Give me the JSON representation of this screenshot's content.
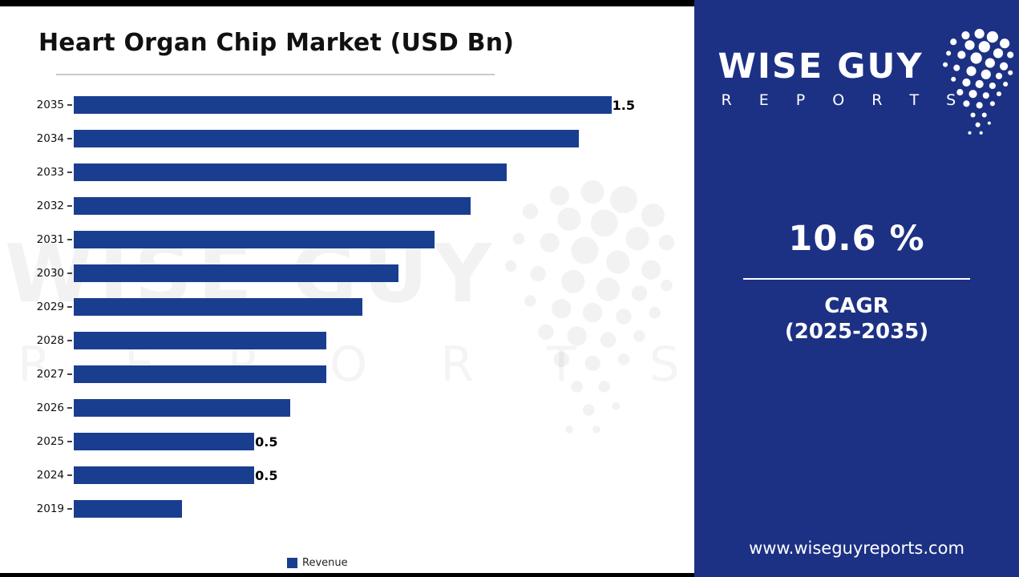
{
  "chart_data": {
    "type": "bar",
    "orientation": "horizontal",
    "title": "Heart Organ Chip Market (USD Bn)",
    "legend": [
      "Revenue"
    ],
    "categories": [
      "2035",
      "2034",
      "2033",
      "2032",
      "2031",
      "2030",
      "2029",
      "2028",
      "2027",
      "2026",
      "2025",
      "2024",
      "2019"
    ],
    "values": [
      1.5,
      1.4,
      1.2,
      1.1,
      1.0,
      0.9,
      0.8,
      0.7,
      0.7,
      0.6,
      0.5,
      0.5,
      0.3
    ],
    "data_labels": {
      "2035": "1.5",
      "2025": "0.5",
      "2024": "0.5"
    },
    "xlim": [
      0,
      1.5
    ],
    "grid": false,
    "legend_position": "bottom-center",
    "bar_color": "#1a3e8f"
  },
  "brand": {
    "name_line1": "WISE GUY",
    "name_line2": "R E P O R T S"
  },
  "watermark": {
    "line1": "WISE GUY",
    "line2": "R E P O R T S"
  },
  "panel": {
    "cagr_value": "10.6 %",
    "cagr_label": "CAGR",
    "cagr_period": "(2025-2035)",
    "website": "www.wiseguyreports.com",
    "bg_color": "#1c3184"
  }
}
